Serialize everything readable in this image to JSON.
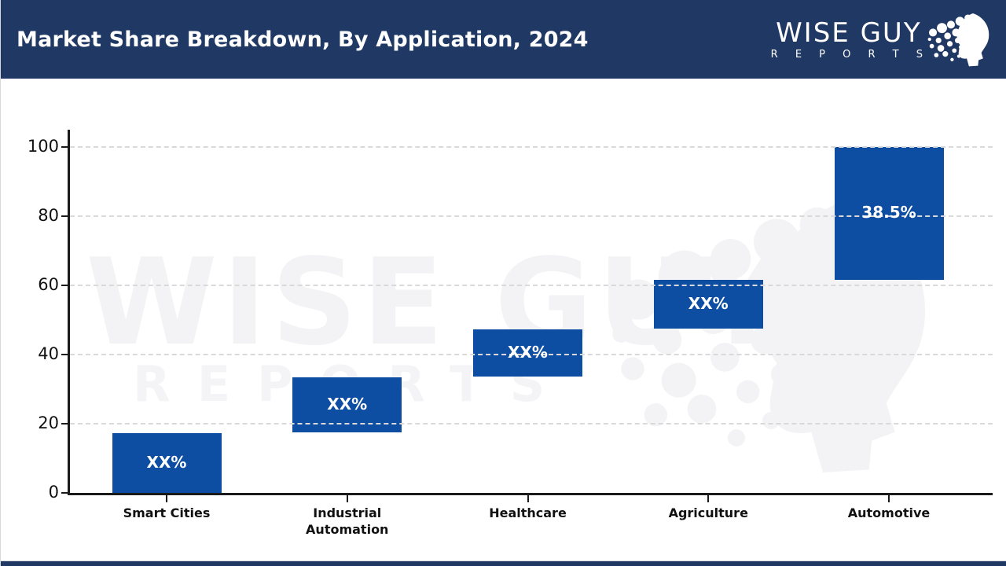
{
  "header": {
    "title": "Market Share Breakdown, By Application, 2024",
    "brand": {
      "line1": "WISE GUY",
      "line2": "REPORTS"
    }
  },
  "watermark": {
    "line1": "WISE GUY",
    "line2": "REPORTS",
    "head_icon": "dotted-head-profile"
  },
  "colors": {
    "header_bg": "#203864",
    "bar": "#0d4da2",
    "bar_label": "#ffffff",
    "grid": "#d9d9d9",
    "axis": "#1a1a1a",
    "watermark": "#f3f3f5",
    "footer_bar": "#203864"
  },
  "chart_data": {
    "type": "bar",
    "subtype": "floating-waterfall",
    "title": "Market Share Breakdown, By Application, 2024",
    "categories": [
      "Smart Cities",
      "Industrial Automation",
      "Healthcare",
      "Agriculture",
      "Automotive"
    ],
    "segments": [
      {
        "category": "Smart Cities",
        "start": 0,
        "end": 17.3,
        "label": "XX%"
      },
      {
        "category": "Industrial Automation",
        "start": 17.5,
        "end": 33.4,
        "label": "XX%"
      },
      {
        "category": "Healthcare",
        "start": 33.7,
        "end": 47.2,
        "label": "XX%"
      },
      {
        "category": "Agriculture",
        "start": 47.4,
        "end": 61.6,
        "label": "XX%"
      },
      {
        "category": "Automotive",
        "start": 61.5,
        "end": 100,
        "label": "38.5%"
      }
    ],
    "ylim": [
      0,
      100
    ],
    "yticks": [
      0,
      20,
      40,
      60,
      80,
      100
    ],
    "xlabel": "",
    "ylabel": "",
    "grid": "horizontal-dashed",
    "legend": "none"
  }
}
